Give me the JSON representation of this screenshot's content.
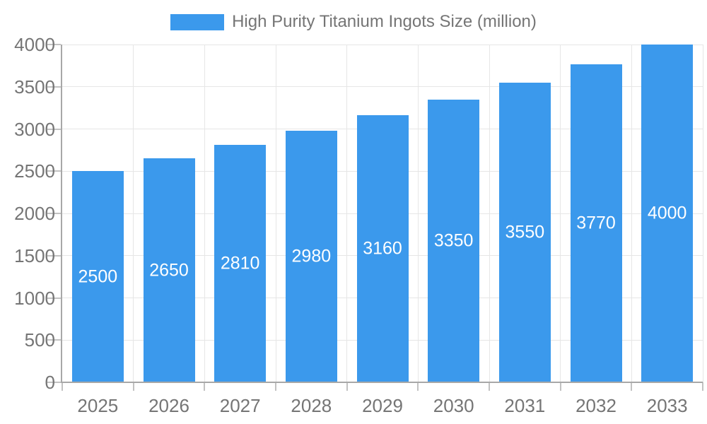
{
  "chart_data": {
    "type": "bar",
    "title": "High Purity Titanium Ingots Size (million)",
    "categories": [
      "2025",
      "2026",
      "2027",
      "2028",
      "2029",
      "2030",
      "2031",
      "2032",
      "2033"
    ],
    "values": [
      2500,
      2650,
      2810,
      2980,
      3160,
      3350,
      3550,
      3770,
      4000
    ],
    "xlabel": "",
    "ylabel": "",
    "ylim": [
      0,
      4000
    ],
    "ytick_step": 500,
    "grid": true,
    "legend_position": "top-center",
    "bar_labels_inside": true,
    "colors": {
      "bar": "#3b99ec",
      "bar_label_text": "#ffffff",
      "axis_text": "#757575",
      "legend_text": "#757575",
      "gridline": "#e6e6e6",
      "axis_line": "#a8a8a8",
      "tick": "#c2c2c2",
      "background": "#ffffff"
    }
  }
}
